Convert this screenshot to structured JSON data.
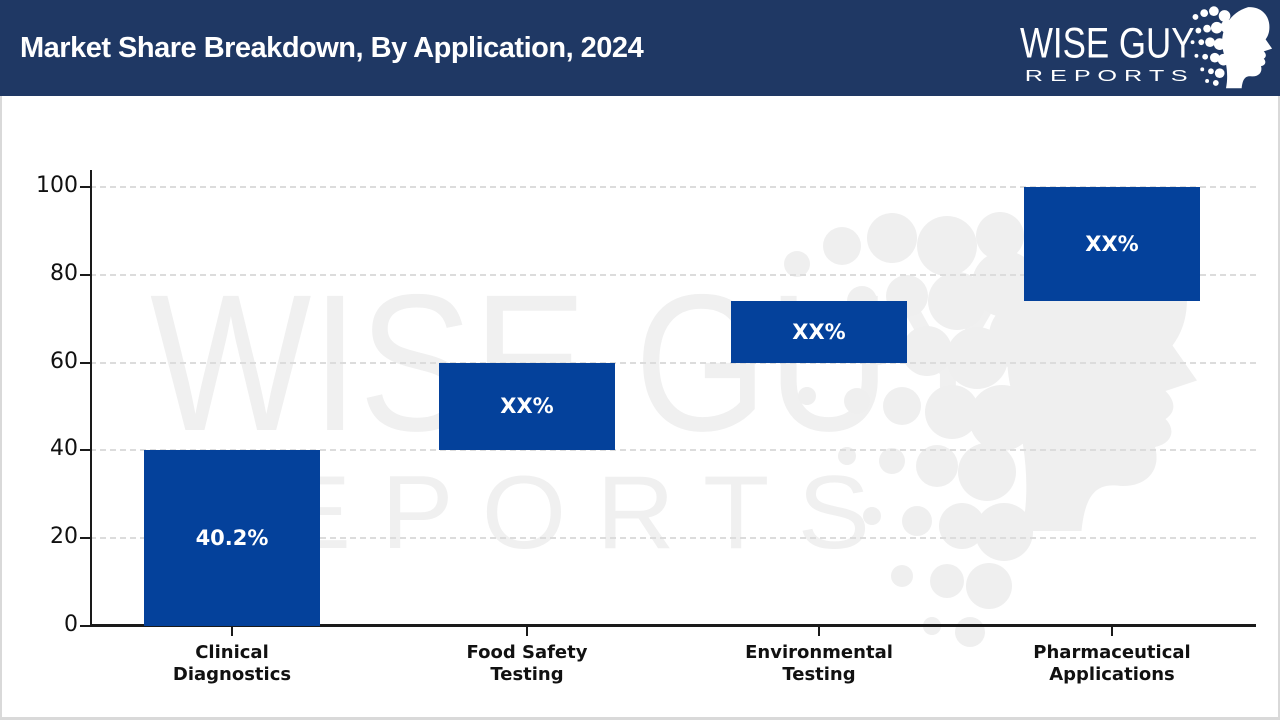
{
  "header": {
    "title": "Market Share Breakdown, By Application, 2024",
    "logo": {
      "brand_line1": "WISE GUY",
      "brand_line2": "R E P O R T S"
    }
  },
  "watermark": {
    "line1": "WISE GUY",
    "line2": "R E P O R T S"
  },
  "chart_data": {
    "type": "bar",
    "subtype": "waterfall",
    "title": "Market Share Breakdown, By Application, 2024",
    "categories": [
      "Clinical Diagnostics",
      "Food Safety Testing",
      "Environmental Testing",
      "Pharmaceutical Applications"
    ],
    "category_lines": [
      [
        "Clinical",
        "Diagnostics"
      ],
      [
        "Food Safety",
        "Testing"
      ],
      [
        "Environmental",
        "Testing"
      ],
      [
        "Pharmaceutical",
        "Applications"
      ]
    ],
    "bars": [
      {
        "label": "40.2%",
        "start": 0,
        "end": 40.2
      },
      {
        "label": "XX%",
        "start": 40.2,
        "end": 60
      },
      {
        "label": "XX%",
        "start": 60,
        "end": 74
      },
      {
        "label": "XX%",
        "start": 74,
        "end": 100
      }
    ],
    "ylim": [
      0,
      100
    ],
    "yticks": [
      0,
      20,
      40,
      60,
      80,
      100
    ],
    "xlabel": "",
    "ylabel": "",
    "grid": "dashed-horizontal",
    "legend": "none",
    "bar_color": "#04419b",
    "bar_label_color": "#ffffff",
    "axis_color": "#1a1a1a",
    "grid_color": "#dcdcdc"
  },
  "colors": {
    "header_bg": "#1f3864",
    "content_bg": "#ffffff",
    "watermark": "#f0f0f0",
    "border": "#d9d9d9"
  }
}
